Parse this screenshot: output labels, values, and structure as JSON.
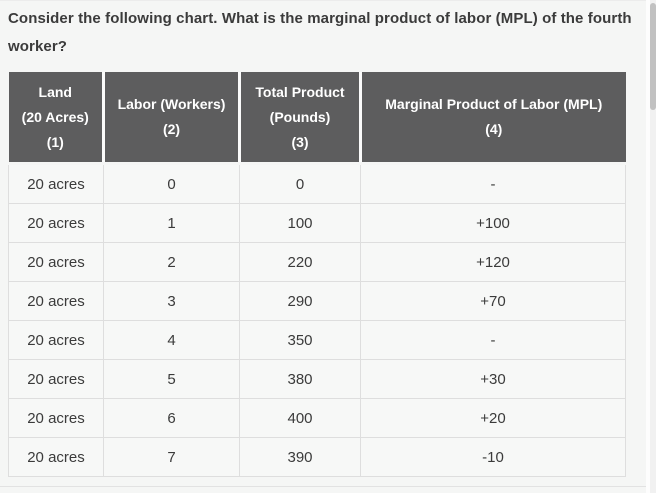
{
  "question": {
    "text": "Consider the following chart. What is the marginal product of labor (MPL) of the fourth worker?"
  },
  "table": {
    "columns": [
      {
        "key": "land",
        "lines": [
          "Land",
          "(20 Acres)",
          "(1)"
        ]
      },
      {
        "key": "labor",
        "lines": [
          "Labor (Workers)",
          "(2)"
        ]
      },
      {
        "key": "total-product",
        "lines": [
          "Total Product",
          "(Pounds)",
          "(3)"
        ]
      },
      {
        "key": "mpl",
        "lines": [
          "Marginal Product of Labor (MPL)",
          "(4)"
        ]
      }
    ],
    "rows": [
      [
        "20 acres",
        "0",
        "0",
        "-"
      ],
      [
        "20 acres",
        "1",
        "100",
        "+100"
      ],
      [
        "20 acres",
        "2",
        "220",
        "+120"
      ],
      [
        "20 acres",
        "3",
        "290",
        "+70"
      ],
      [
        "20 acres",
        "4",
        "350",
        "-"
      ],
      [
        "20 acres",
        "5",
        "380",
        "+30"
      ],
      [
        "20 acres",
        "6",
        "400",
        "+20"
      ],
      [
        "20 acres",
        "7",
        "390",
        "-10"
      ]
    ]
  },
  "colors": {
    "page_bg": "#f5f6f5",
    "header_bg": "#5d5d5e",
    "header_text": "#ffffff",
    "cell_bg": "#f7f8f7",
    "border": "#dedede",
    "text": "#3b3b3b",
    "scrollbar_thumb": "#c1c1c1",
    "scrollbar_track": "#f1f1f1"
  }
}
